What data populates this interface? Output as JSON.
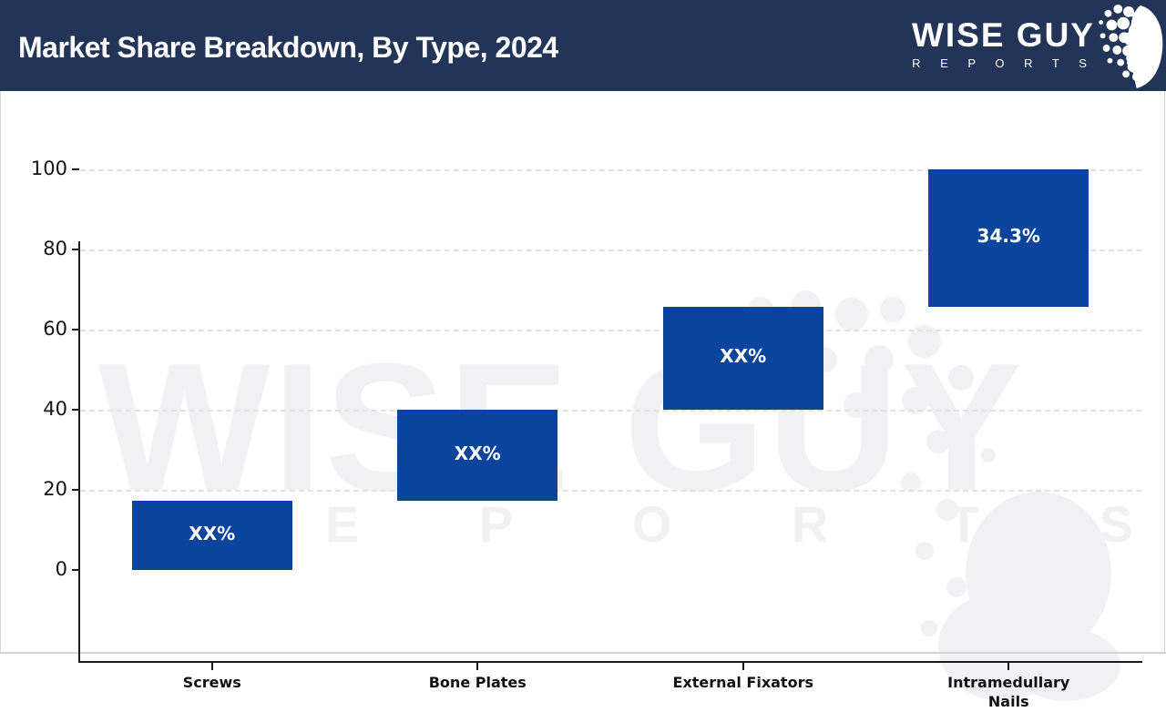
{
  "header": {
    "title": "Market Share Breakdown, By Type, 2024",
    "logo": {
      "line1": "WISE GUY",
      "line2": "R E P O R T S"
    }
  },
  "watermark": {
    "line1": "WISE GUY",
    "line2": "R E P O R T S"
  },
  "colors": {
    "header_bg": "#233459",
    "bar": "#0a449c",
    "bar_label": "#ffffff",
    "watermark": "#f1f1f4",
    "grid": "#e2e2e2",
    "axis": "#1a1a1a"
  },
  "chart_data": {
    "type": "bar",
    "subtype": "floating-waterfall",
    "title": "Market Share Breakdown, By Type, 2024",
    "categories": [
      "Screws",
      "Bone Plates",
      "External Fixators",
      "Intramedullary Nails"
    ],
    "segments": [
      {
        "category": "Screws",
        "start": 0,
        "end": 17.2,
        "label": "XX%"
      },
      {
        "category": "Bone Plates",
        "start": 17.2,
        "end": 40.0,
        "label": "XX%"
      },
      {
        "category": "External Fixators",
        "start": 40.0,
        "end": 65.7,
        "label": "XX%"
      },
      {
        "category": "Intramedullary Nails",
        "start": 65.7,
        "end": 100.0,
        "label": "34.3%"
      }
    ],
    "implied_values": [
      17.2,
      22.8,
      25.7,
      34.3
    ],
    "xlabel": "",
    "ylabel": "",
    "ylim": [
      0,
      100
    ],
    "yticks": [
      0,
      20,
      40,
      60,
      80,
      100
    ],
    "grid": {
      "horizontal": true,
      "style": "dashed"
    },
    "legend": "none",
    "bar_color": "#0a449c",
    "bar_label_color": "#ffffff"
  }
}
